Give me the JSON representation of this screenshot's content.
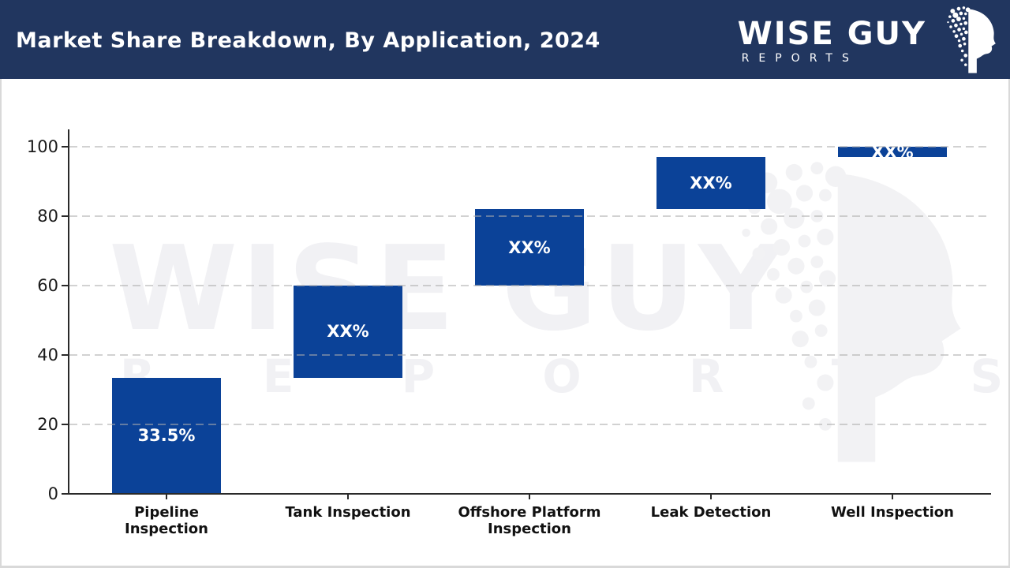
{
  "header": {
    "title": "Market Share Breakdown, By Application, 2024",
    "logo": {
      "line1": "WISE GUY",
      "line2": "REPORTS"
    }
  },
  "watermark": {
    "line1": "WISE GUY",
    "line2": "R E P O R T S"
  },
  "colors": {
    "header_bg": "#21365f",
    "bar_blue": "#0b4298",
    "axis": "#2a2a2a",
    "gridline": "#dcdcdc",
    "watermark": "#f1f1f4",
    "bar_label_text": "#ffffff"
  },
  "chart_data": {
    "type": "bar",
    "subtype": "waterfall",
    "title": "Market Share Breakdown, By Application, 2024",
    "xlabel": "",
    "ylabel": "",
    "ylim": [
      0,
      105
    ],
    "yticks": [
      0,
      20,
      40,
      60,
      80,
      100
    ],
    "grid": "horizontal-dashed",
    "legend": "none",
    "categories": [
      "Pipeline\nInspection",
      "Tank Inspection",
      "Offshore Platform\nInspection",
      "Leak Detection",
      "Well Inspection"
    ],
    "segments": [
      {
        "category": "Pipeline\nInspection",
        "start": 0,
        "end": 33.5,
        "value_label": "33.5%"
      },
      {
        "category": "Tank Inspection",
        "start": 33.5,
        "end": 60,
        "value_label": "XX%"
      },
      {
        "category": "Offshore Platform\nInspection",
        "start": 60,
        "end": 82,
        "value_label": "XX%"
      },
      {
        "category": "Leak Detection",
        "start": 82,
        "end": 97,
        "value_label": "XX%"
      },
      {
        "category": "Well Inspection",
        "start": 97,
        "end": 100,
        "value_label": "XX%"
      }
    ]
  }
}
